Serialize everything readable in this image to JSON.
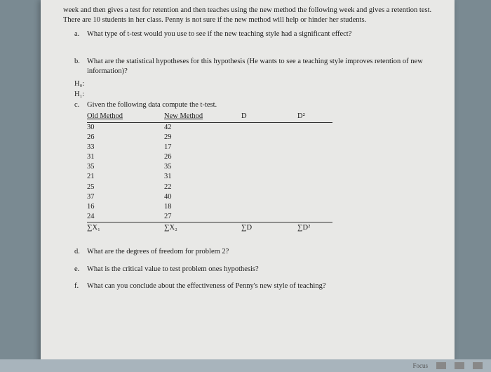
{
  "intro": "week and then gives a test for retention and then teaches using the new method the following week and gives a retention test. There are 10 students in her class. Penny is not sure if the new method will help or hinder her students.",
  "questions": {
    "a": {
      "label": "a.",
      "text": "What type of t-test would you use to see if the new teaching style had a significant effect?"
    },
    "b": {
      "label": "b.",
      "text": "What are the statistical hypotheses for this hypothesis (He wants to see a teaching style improves retention of new information)?"
    },
    "c": {
      "label": "c.",
      "text": "Given the following data compute the t-test."
    },
    "d": {
      "label": "d.",
      "text": "What are the degrees of freedom for problem 2?"
    },
    "e": {
      "label": "e.",
      "text": "What is the critical value to test problem ones hypothesis?"
    },
    "f": {
      "label": "f.",
      "text": "What can you conclude about the effectiveness of Penny's new style of teaching?"
    }
  },
  "hypotheses": {
    "h0": "H₀:",
    "h1": "H₁:"
  },
  "table": {
    "headers": {
      "old": "Old Method",
      "new": "New Method",
      "d": "D",
      "d2": "D²"
    },
    "rows": [
      {
        "old": "30",
        "new": "42"
      },
      {
        "old": "26",
        "new": "29"
      },
      {
        "old": "33",
        "new": "17"
      },
      {
        "old": "31",
        "new": "26"
      },
      {
        "old": "35",
        "new": "35"
      },
      {
        "old": "21",
        "new": "31"
      },
      {
        "old": "25",
        "new": "22"
      },
      {
        "old": "37",
        "new": "40"
      },
      {
        "old": "16",
        "new": "18"
      },
      {
        "old": "24",
        "new": "27"
      }
    ],
    "sums": {
      "sx1": "∑X₁",
      "sx2": "∑X₂",
      "sd": "∑D",
      "sd2": "∑D²"
    }
  },
  "statusbar": {
    "focus": "Focus"
  }
}
